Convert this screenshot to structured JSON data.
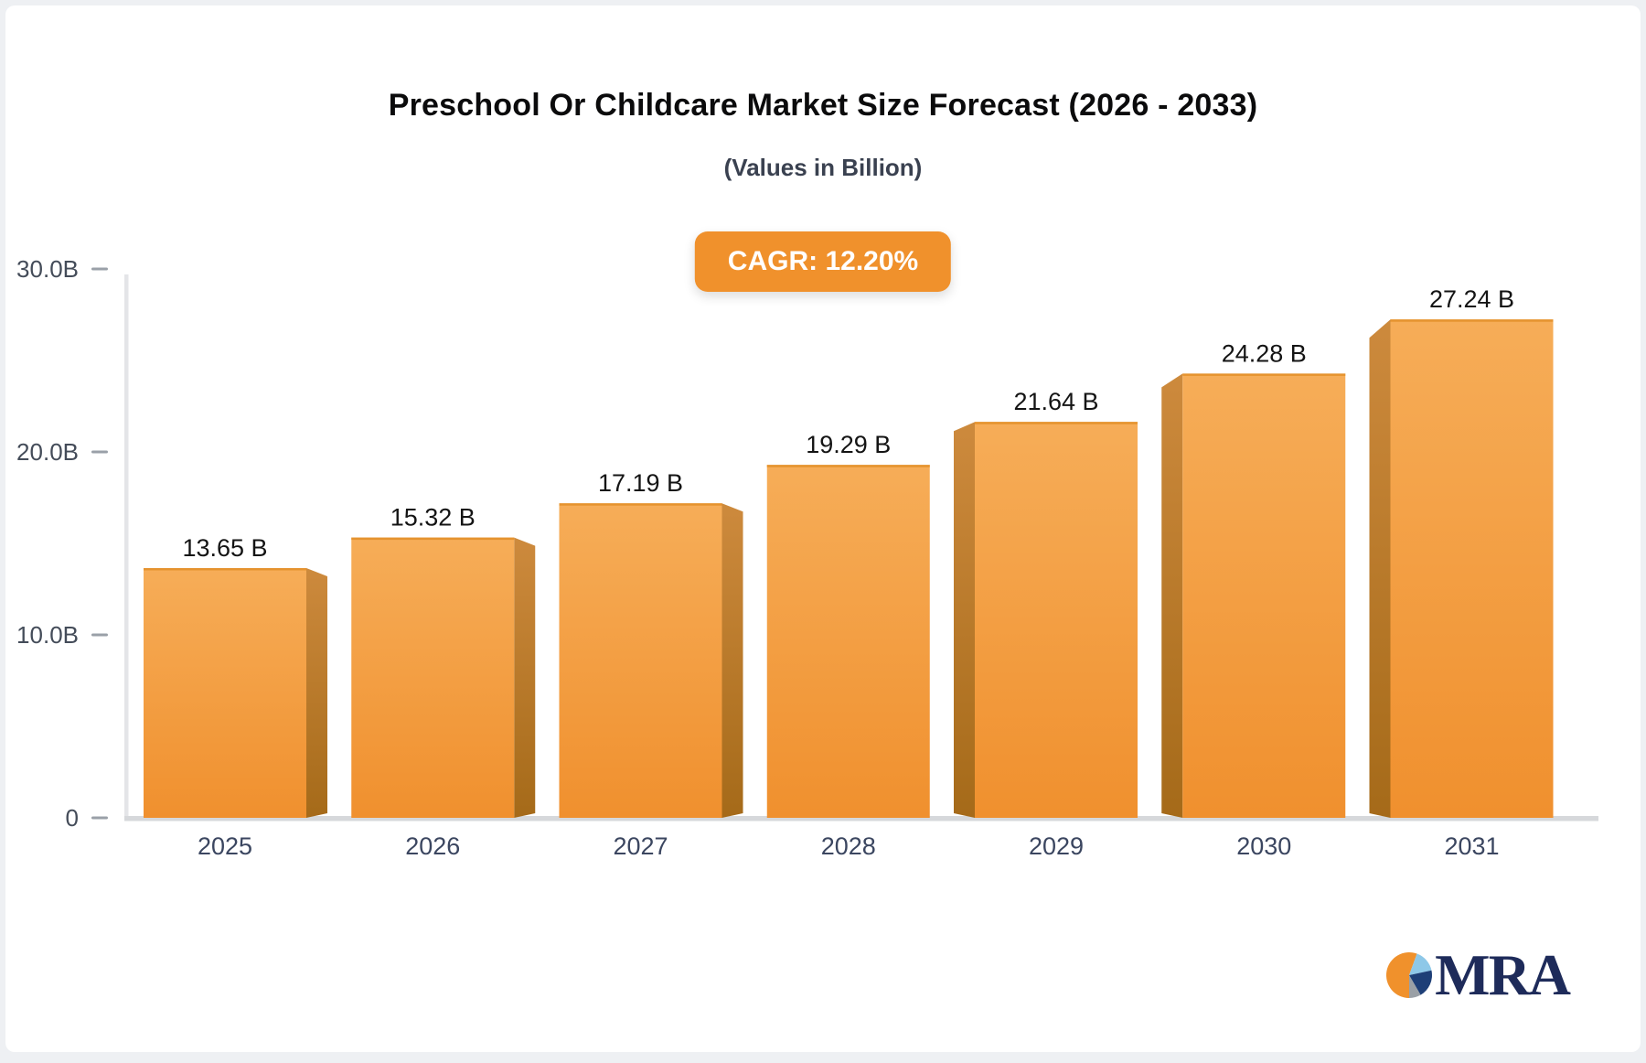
{
  "badge": {
    "label": "CAGR: 12.20%"
  },
  "logo": {
    "text": "MRA",
    "pie_slices": [
      {
        "name": "orange",
        "color": "#f0912c",
        "start": 180,
        "end": 380
      },
      {
        "name": "light-blue",
        "color": "#8ec8e8",
        "start": 20,
        "end": 78
      },
      {
        "name": "navy",
        "color": "#1e3f77",
        "start": 78,
        "end": 150
      },
      {
        "name": "gray",
        "color": "#9aa0a6",
        "start": 150,
        "end": 180
      }
    ]
  },
  "chart_data": {
    "type": "bar",
    "title": "Preschool Or Childcare Market Size Forecast (2026 - 2033)",
    "subtitle": "(Values in Billion)",
    "annotation": "CAGR: 12.20%",
    "categories": [
      "2025",
      "2026",
      "2027",
      "2028",
      "2029",
      "2030",
      "2031"
    ],
    "values": [
      13.65,
      15.32,
      17.19,
      19.29,
      21.64,
      24.28,
      27.24
    ],
    "bar_labels": [
      "13.65 B",
      "15.32 B",
      "17.19 B",
      "19.29 B",
      "21.64 B",
      "24.28 B",
      "27.24 B"
    ],
    "ytick_labels": [
      "30.0B",
      "20.0B",
      "10.0B",
      "0"
    ],
    "ytick_values": [
      30,
      20,
      10,
      0
    ],
    "ylim": [
      0,
      30
    ],
    "grid": false,
    "legend": "none",
    "colors": {
      "bar_face_top": "#f6ad58",
      "bar_face_bottom": "#f0902e",
      "bar_side_top": "#cd8a3d",
      "bar_side_bottom": "#a56a19",
      "bar_top_edge": "#e5932f",
      "axis_line": "#e4e5e8",
      "baseline": "#d6d8db",
      "tick_dash": "#9aa0a8",
      "ytick_text": "#444c59",
      "xtick_text": "#3b4660",
      "value_text": "#141414"
    }
  }
}
